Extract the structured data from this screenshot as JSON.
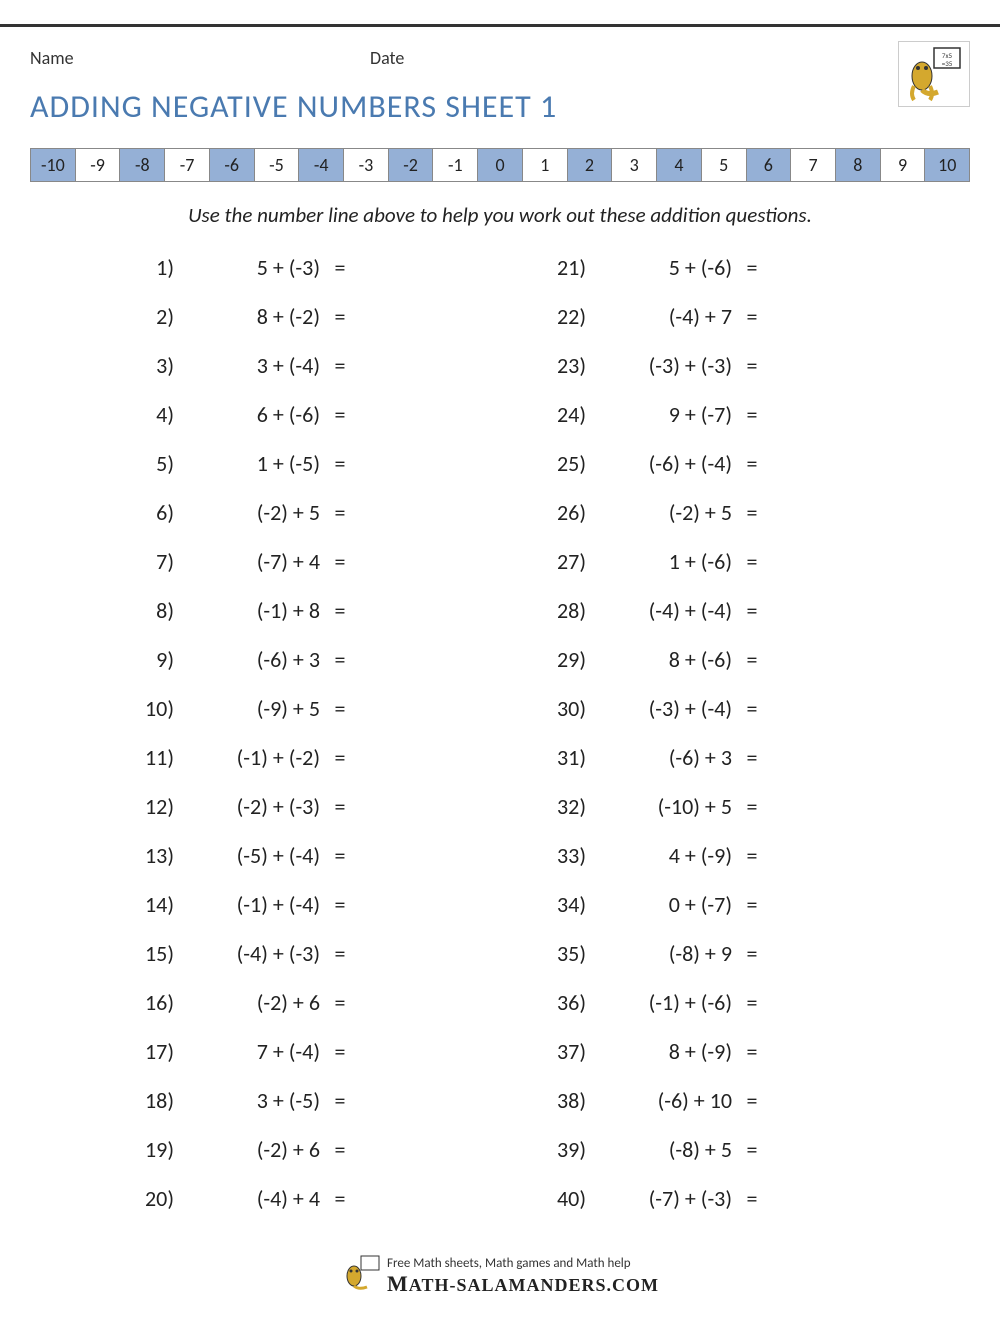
{
  "header": {
    "name_label": "Name",
    "date_label": "Date"
  },
  "title": "ADDING NEGATIVE NUMBERS SHEET 1",
  "number_line": {
    "cells": [
      {
        "v": "-10",
        "shaded": true
      },
      {
        "v": "-9",
        "shaded": false
      },
      {
        "v": "-8",
        "shaded": true
      },
      {
        "v": "-7",
        "shaded": false
      },
      {
        "v": "-6",
        "shaded": true
      },
      {
        "v": "-5",
        "shaded": false
      },
      {
        "v": "-4",
        "shaded": true
      },
      {
        "v": "-3",
        "shaded": false
      },
      {
        "v": "-2",
        "shaded": true
      },
      {
        "v": "-1",
        "shaded": false
      },
      {
        "v": "0",
        "shaded": true
      },
      {
        "v": "1",
        "shaded": false
      },
      {
        "v": "2",
        "shaded": true
      },
      {
        "v": "3",
        "shaded": false
      },
      {
        "v": "4",
        "shaded": true
      },
      {
        "v": "5",
        "shaded": false
      },
      {
        "v": "6",
        "shaded": true
      },
      {
        "v": "7",
        "shaded": false
      },
      {
        "v": "8",
        "shaded": true
      },
      {
        "v": "9",
        "shaded": false
      },
      {
        "v": "10",
        "shaded": true
      }
    ]
  },
  "instruction": "Use the number line above to help you work out these addition questions.",
  "questions_left": [
    {
      "n": "1)",
      "e": "5 + (-3)"
    },
    {
      "n": "2)",
      "e": "8 + (-2)"
    },
    {
      "n": "3)",
      "e": "3 + (-4)"
    },
    {
      "n": "4)",
      "e": "6 + (-6)"
    },
    {
      "n": "5)",
      "e": "1 + (-5)"
    },
    {
      "n": "6)",
      "e": "(-2) + 5"
    },
    {
      "n": "7)",
      "e": "(-7) + 4"
    },
    {
      "n": "8)",
      "e": "(-1) + 8"
    },
    {
      "n": "9)",
      "e": "(-6) + 3"
    },
    {
      "n": "10)",
      "e": "(-9) + 5"
    },
    {
      "n": "11)",
      "e": "(-1) + (-2)"
    },
    {
      "n": "12)",
      "e": "(-2) + (-3)"
    },
    {
      "n": "13)",
      "e": "(-5) + (-4)"
    },
    {
      "n": "14)",
      "e": "(-1) + (-4)"
    },
    {
      "n": "15)",
      "e": "(-4) + (-3)"
    },
    {
      "n": "16)",
      "e": "(-2) + 6"
    },
    {
      "n": "17)",
      "e": "7 + (-4)"
    },
    {
      "n": "18)",
      "e": "3 + (-5)"
    },
    {
      "n": "19)",
      "e": "(-2) + 6"
    },
    {
      "n": "20)",
      "e": "(-4) + 4"
    }
  ],
  "questions_right": [
    {
      "n": "21)",
      "e": "5 + (-6)"
    },
    {
      "n": "22)",
      "e": "(-4) + 7"
    },
    {
      "n": "23)",
      "e": "(-3) + (-3)"
    },
    {
      "n": "24)",
      "e": "9 + (-7)"
    },
    {
      "n": "25)",
      "e": "(-6) + (-4)"
    },
    {
      "n": "26)",
      "e": "(-2) + 5"
    },
    {
      "n": "27)",
      "e": "1 + (-6)"
    },
    {
      "n": "28)",
      "e": "(-4) + (-4)"
    },
    {
      "n": "29)",
      "e": "8 + (-6)"
    },
    {
      "n": "30)",
      "e": "(-3) + (-4)"
    },
    {
      "n": "31)",
      "e": "(-6) + 3"
    },
    {
      "n": "32)",
      "e": "(-10) + 5"
    },
    {
      "n": "33)",
      "e": "4 + (-9)"
    },
    {
      "n": "34)",
      "e": "0 + (-7)"
    },
    {
      "n": "35)",
      "e": "(-8) + 9"
    },
    {
      "n": "36)",
      "e": "(-1) + (-6)"
    },
    {
      "n": "37)",
      "e": "8 + (-9)"
    },
    {
      "n": "38)",
      "e": "(-6) + 10"
    },
    {
      "n": "39)",
      "e": "(-8) + 5"
    },
    {
      "n": "40)",
      "e": "(-7) + (-3)"
    }
  ],
  "eq": "=",
  "footer": {
    "line1": "Free Math sheets, Math games and Math help",
    "line2": "ATH-SALAMANDERS.COM"
  },
  "colors": {
    "title": "#4a7ab0",
    "shaded_cell": "#95b0d6",
    "border": "#888888",
    "text": "#222222"
  }
}
